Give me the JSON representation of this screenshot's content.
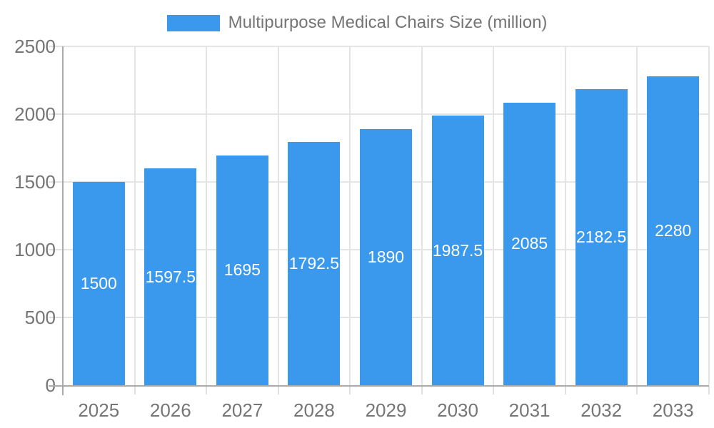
{
  "legend": {
    "label": "Multipurpose Medical Chairs Size (million)"
  },
  "colors": {
    "bar": "#3A99EC",
    "grid": "#E4E4E4",
    "axis": "#ABABAB",
    "tick_dash": "#E0E0E0",
    "axis_label": "#757575",
    "bar_label": "#FFFFFF",
    "background": "#FFFFFF"
  },
  "chart_data": {
    "type": "bar",
    "title": "",
    "categories": [
      "2025",
      "2026",
      "2027",
      "2028",
      "2029",
      "2030",
      "2031",
      "2032",
      "2033"
    ],
    "values": [
      1500,
      1597.5,
      1695,
      1792.5,
      1890,
      1987.5,
      2085,
      2182.5,
      2280
    ],
    "series_name": "Multipurpose Medical Chairs Size (million)",
    "bar_labels": [
      "1500",
      "1597.5",
      "1695",
      "1792.5",
      "1890",
      "1987.5",
      "2085",
      "2182.5",
      "2280"
    ],
    "xlabel": "",
    "ylabel": "",
    "ylim": [
      0,
      2500
    ],
    "y_ticks": [
      0,
      500,
      1000,
      1500,
      2000,
      2500
    ],
    "grid": true,
    "legend_position": "top",
    "data_labels_position": "center-inside"
  }
}
